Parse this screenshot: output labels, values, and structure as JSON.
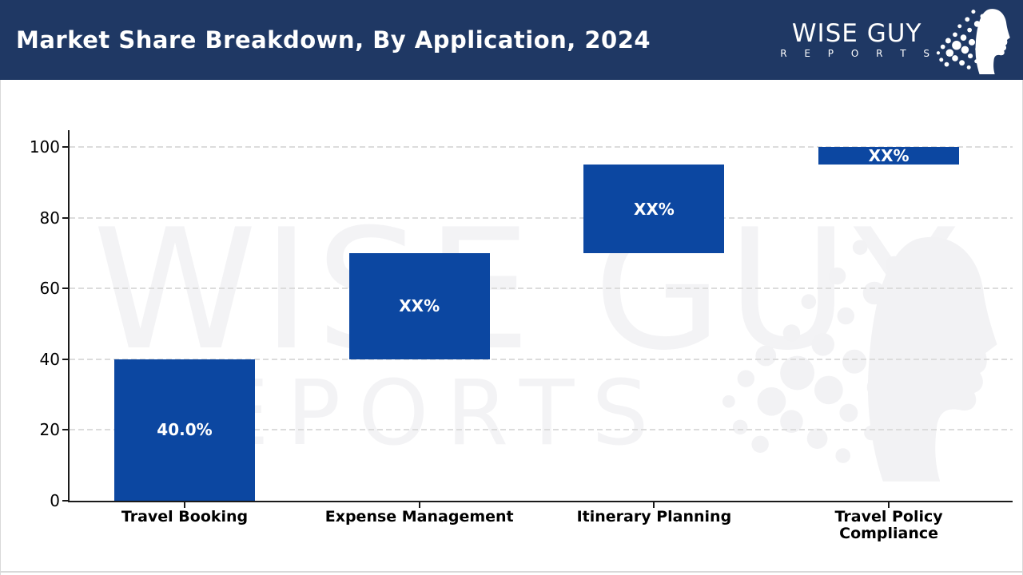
{
  "header": {
    "title": "Market Share Breakdown, By Application, 2024",
    "bg_color": "#1f3864",
    "logo": {
      "line1": "WISE GUY",
      "line2": "R E P O R T S",
      "face_icon": "dotted-head-profile"
    }
  },
  "watermark": {
    "line1": "WISE GUY",
    "line2": "REPORTS",
    "face_icon": "dotted-head-profile"
  },
  "chart_data": {
    "type": "bar",
    "subtype": "waterfall",
    "title": "Market Share Breakdown, By Application, 2024",
    "categories": [
      "Travel Booking",
      "Expense Management",
      "Itinerary Planning",
      "Travel Policy Compliance"
    ],
    "series": [
      {
        "name": "Market Share",
        "segments": [
          [
            0,
            40
          ],
          [
            40,
            70
          ],
          [
            70,
            95
          ],
          [
            95,
            100
          ]
        ],
        "values": [
          40,
          30,
          25,
          5
        ]
      }
    ],
    "bar_labels": [
      "40.0%",
      "XX%",
      "XX%",
      "XX%"
    ],
    "xlabel": "",
    "ylabel": "",
    "y_ticks": [
      0,
      20,
      40,
      60,
      80,
      100
    ],
    "ylim": [
      0,
      105
    ],
    "grid": true,
    "grid_style": "dashed",
    "legend": false,
    "bar_color": "#0c47a1",
    "label_color": "#ffffff",
    "grid_color": "#dcdcdc",
    "axis_color": "#1a1a1a"
  }
}
